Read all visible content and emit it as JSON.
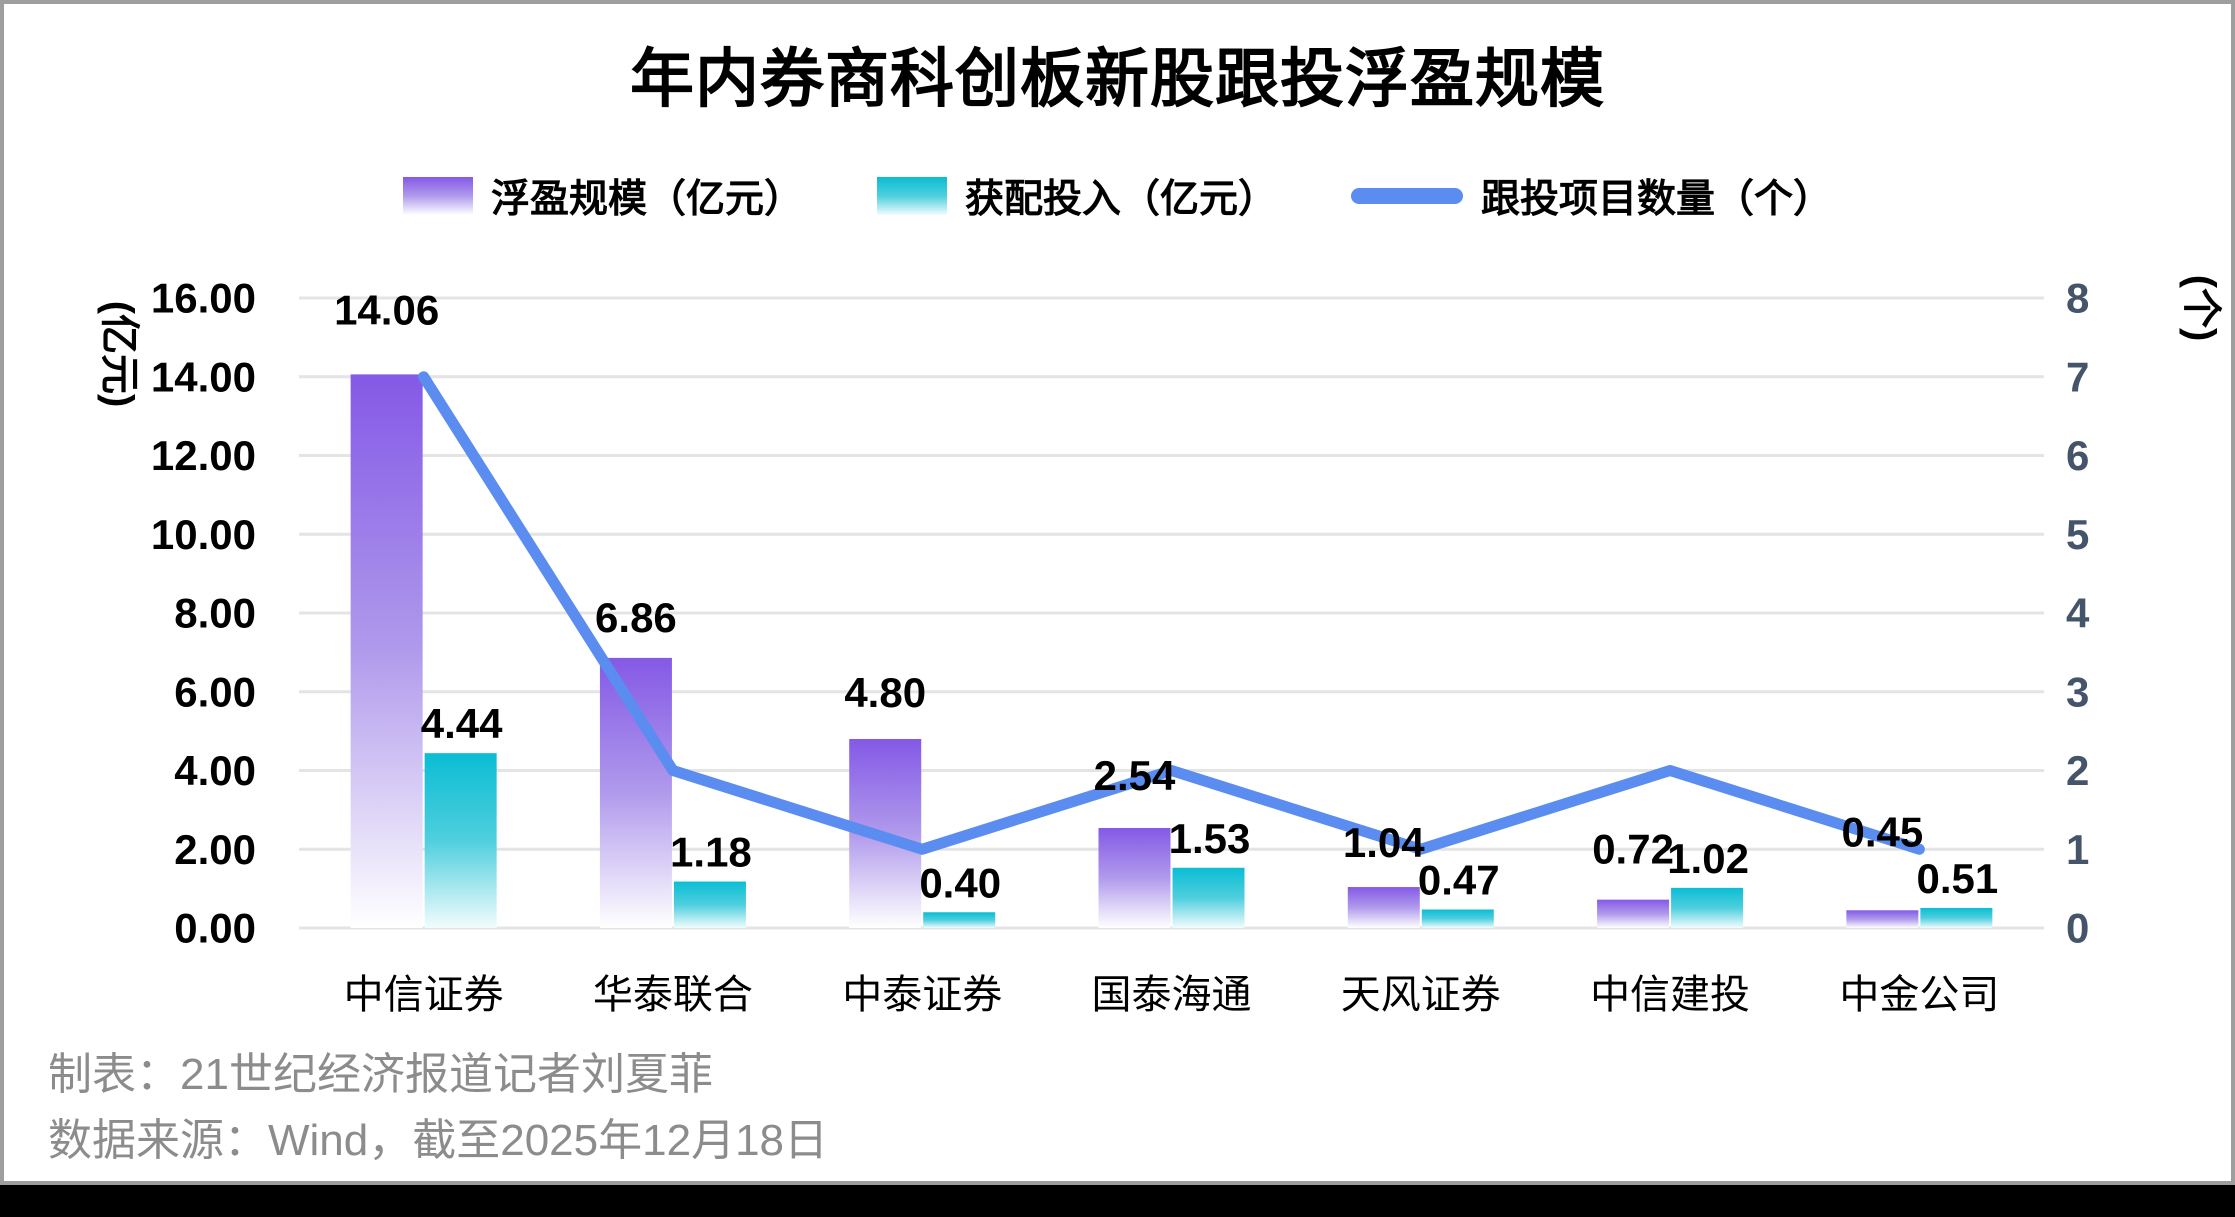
{
  "title": "年内券商科创板新股跟投浮盈规模",
  "legend": [
    {
      "label": "浮盈规模（亿元）",
      "type": "bar-gradient-purple"
    },
    {
      "label": "获配投入（亿元）",
      "type": "bar-gradient-teal"
    },
    {
      "label": "跟投项目数量（个）",
      "type": "line-blue"
    }
  ],
  "chart_data": {
    "type": "bar+line",
    "categories": [
      "中信证券",
      "华泰联合",
      "中泰证券",
      "国泰海通",
      "天风证券",
      "中信建投",
      "中金公司"
    ],
    "series": [
      {
        "name": "浮盈规模（亿元）",
        "type": "bar",
        "axis": "left",
        "values": [
          14.06,
          6.86,
          4.8,
          2.54,
          1.04,
          0.72,
          0.45
        ],
        "color_top": "#8459E6",
        "color_mid": "#B09AEC",
        "color_bottom": "#FFFFFF"
      },
      {
        "name": "获配投入（亿元）",
        "type": "bar",
        "axis": "left",
        "values": [
          4.44,
          1.18,
          0.4,
          1.53,
          0.47,
          1.02,
          0.51
        ],
        "color_top": "#0ABDD3",
        "color_mid": "#4FCFDE",
        "color_bottom": "#F2FCFD"
      },
      {
        "name": "跟投项目数量（个）",
        "type": "line",
        "axis": "right",
        "values": [
          7,
          2,
          1,
          2,
          1,
          2,
          1
        ],
        "color": "#5B8CF0"
      }
    ],
    "left_axis": {
      "title": "(亿元)",
      "min": 0,
      "max": 16,
      "step": 2,
      "decimals": 2
    },
    "right_axis": {
      "title": "(个)",
      "min": 0,
      "max": 8,
      "step": 1,
      "decimals": 0
    },
    "grid": true,
    "legend_position": "top"
  },
  "colors": {
    "grid_line": "#E4E4E4",
    "left_tick_text": "#000000",
    "right_tick_text": "#44546A",
    "data_label_text": "#000000",
    "category_text": "#000000",
    "footer_text": "#8C8C8C",
    "card_border": "#9E9E9E",
    "bottom_bar": "#000000",
    "background": "#FFFFFF"
  },
  "footer": {
    "line1": "制表：21世纪经济报道记者刘夏菲",
    "line2": "数据来源：Wind，截至2025年12月18日"
  }
}
